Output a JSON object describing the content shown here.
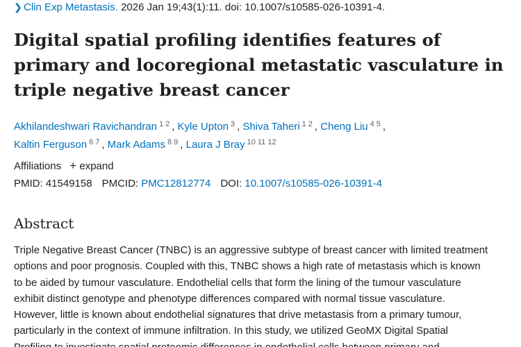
{
  "citation": {
    "journal": "Clin Exp Metastasis.",
    "details": "2026 Jan 19;43(1):11. doi: 10.1007/s10585-026-10391-4."
  },
  "article": {
    "title": "Digital spatial profiling identifies features of primary and locoregional metastatic vasculature in triple negative breast cancer"
  },
  "authors": [
    {
      "name": "Akhilandeshwari Ravichandran",
      "affils": [
        "1",
        "2"
      ]
    },
    {
      "name": "Kyle Upton",
      "affils": [
        "3"
      ]
    },
    {
      "name": "Shiva Taheri",
      "affils": [
        "1",
        "2"
      ]
    },
    {
      "name": "Cheng Liu",
      "affils": [
        "4",
        "5"
      ]
    },
    {
      "name": "Kaltin Ferguson",
      "affils": [
        "6",
        "7"
      ]
    },
    {
      "name": "Mark Adams",
      "affils": [
        "8",
        "9"
      ]
    },
    {
      "name": "Laura J Bray",
      "affils": [
        "10",
        "11",
        "12"
      ]
    }
  ],
  "affiliations": {
    "label": "Affiliations",
    "expand_label": "expand"
  },
  "identifiers": {
    "pmid_label": "PMID:",
    "pmid": "41549158",
    "pmcid_label": "PMCID:",
    "pmcid": "PMC12812774",
    "doi_label": "DOI:",
    "doi": "10.1007/s10585-026-10391-4"
  },
  "abstract": {
    "heading": "Abstract",
    "lines": [
      "Triple Negative Breast Cancer (TNBC) is an aggressive subtype of breast cancer with limited treatment",
      "options and poor prognosis. Coupled with this, TNBC shows a high rate of metastasis which is known",
      "to be aided by tumour vasculature. Endothelial cells that form the lining of the tumour vasculature",
      "exhibit distinct genotype and phenotype differences compared with normal tissue vasculature.",
      "However, little is known about endothelial signatures that drive metastasis from a primary tumour,",
      "particularly in the context of immune infiltration. In this study, we utilized GeoMX Digital Spatial",
      "Profiling to investigate spatial proteomic differences in endothelial cells between primary and"
    ]
  }
}
